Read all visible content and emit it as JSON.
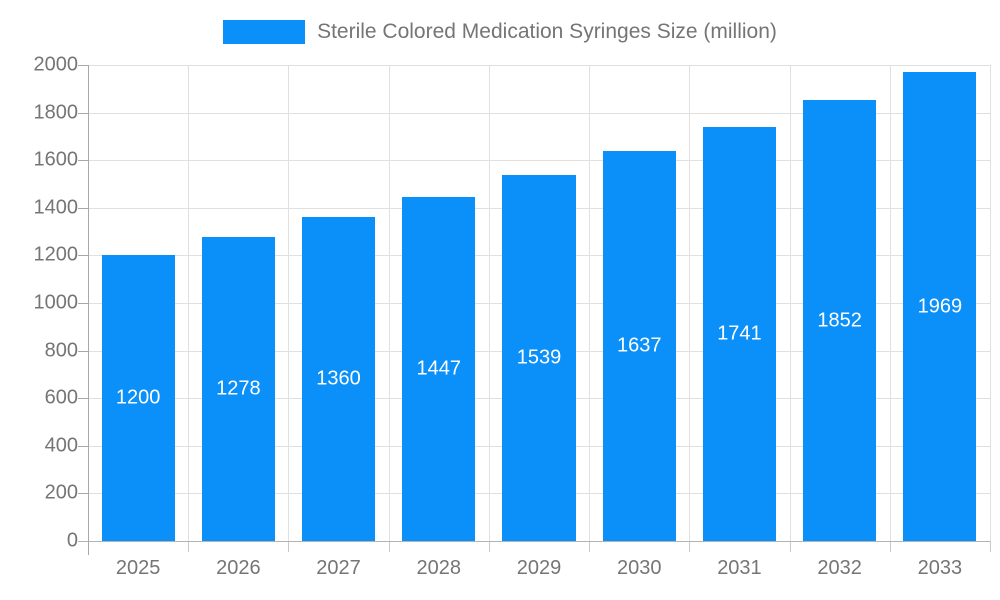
{
  "chart_data": {
    "type": "bar",
    "title": "Sterile Colored Medication Syringes Size (million)",
    "categories": [
      "2025",
      "2026",
      "2027",
      "2028",
      "2029",
      "2030",
      "2031",
      "2032",
      "2033"
    ],
    "values": [
      1200,
      1278,
      1360,
      1447,
      1539,
      1637,
      1741,
      1852,
      1969
    ],
    "xlabel": "",
    "ylabel": "",
    "ylim": [
      0,
      2000
    ],
    "ytick_step": 200,
    "grid": true,
    "legend_position": "top",
    "bar_labels_inside": true,
    "colors": {
      "bar": "#0a90f8",
      "bar_value_text": "#ffffff",
      "axis_text": "#757575",
      "legend_text": "#757575",
      "grid_line": "#e0e0e0",
      "axis_line": "#a8a8a8",
      "background": "#ffffff"
    }
  }
}
